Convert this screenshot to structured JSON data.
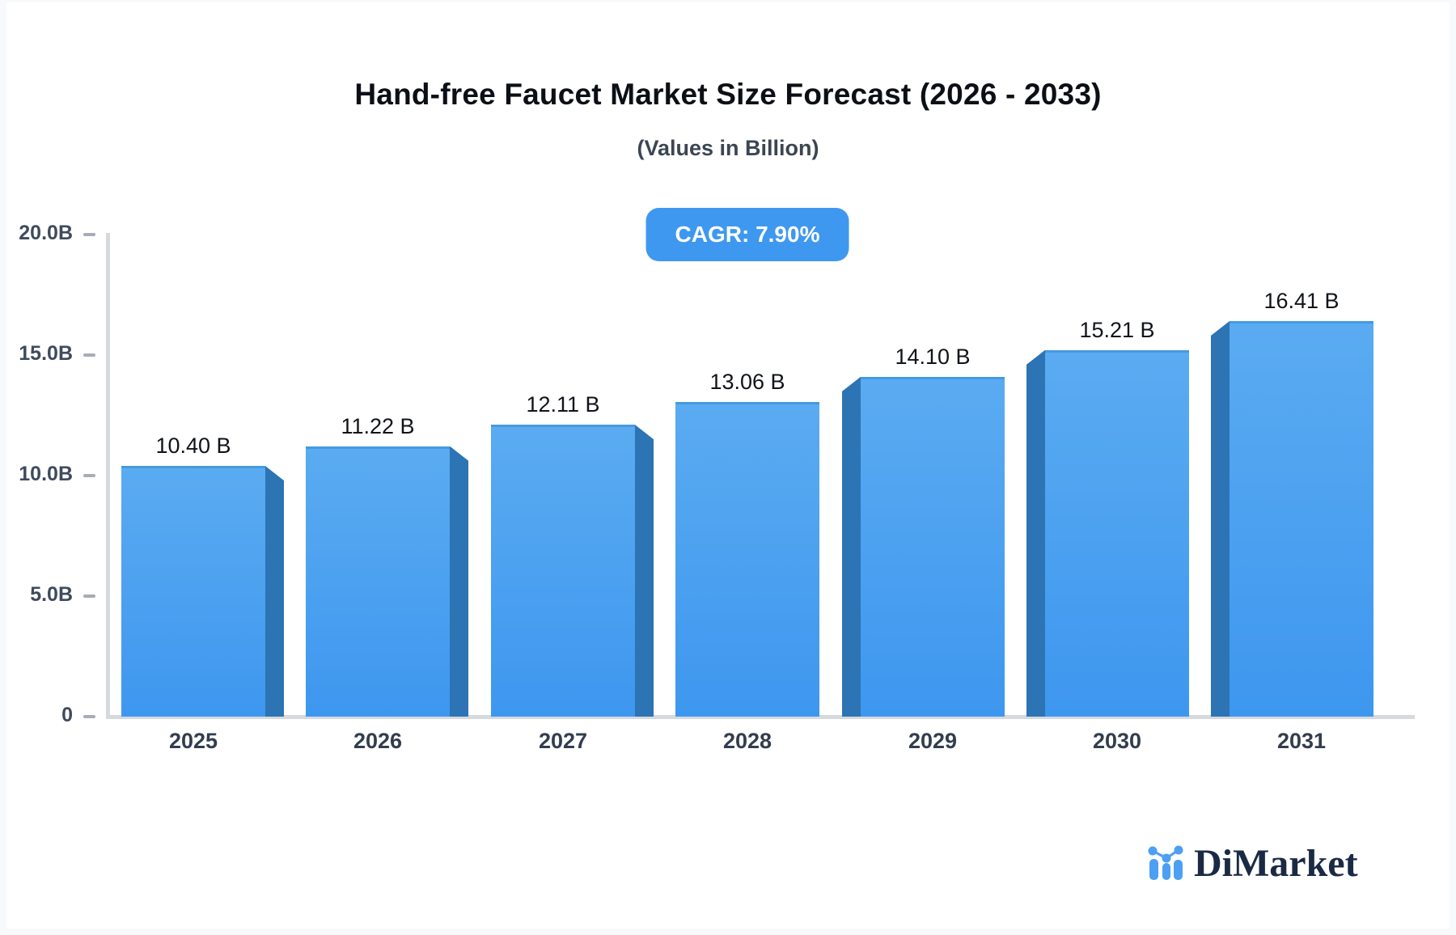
{
  "header": {
    "title": "Hand-free Faucet Market Size Forecast (2026 - 2033)",
    "subtitle": "(Values in Billion)",
    "cagr_badge": "CAGR: 7.90%"
  },
  "chart_data": {
    "type": "bar",
    "title": "Hand-free Faucet Market Size Forecast (2026 - 2033)",
    "subtitle": "(Values in Billion)",
    "cagr_percent": "7.90%",
    "unit": "Billion",
    "categories": [
      "2025",
      "2026",
      "2027",
      "2028",
      "2029",
      "2030",
      "2031"
    ],
    "values": [
      10.4,
      11.22,
      12.11,
      13.06,
      14.1,
      15.21,
      16.41
    ],
    "value_labels": [
      "10.40 B",
      "11.22 B",
      "12.11 B",
      "13.06 B",
      "14.10 B",
      "15.21 B",
      "16.41 B"
    ],
    "y_ticks": [
      {
        "label": "20.0B",
        "value": 20
      },
      {
        "label": "15.0B",
        "value": 15
      },
      {
        "label": "10.0B",
        "value": 10
      },
      {
        "label": "5.0B",
        "value": 5
      },
      {
        "label": "0",
        "value": 0
      }
    ],
    "ylim": [
      0,
      20
    ],
    "grid": false,
    "legend": false,
    "bar_style": "3d-beveled"
  },
  "colors": {
    "badge_bg": "#3f98f0",
    "bar_face_top": "#5aabf1",
    "bar_face_bottom": "#3e97ef",
    "bar_edge": "#459ae0",
    "bar_side": "#2c74b4",
    "axis_line": "#d6d9de",
    "logo_blue": "#4d9ff3",
    "logo_text": "#1b2a44"
  },
  "footer": {
    "brand": "DiMarket"
  }
}
